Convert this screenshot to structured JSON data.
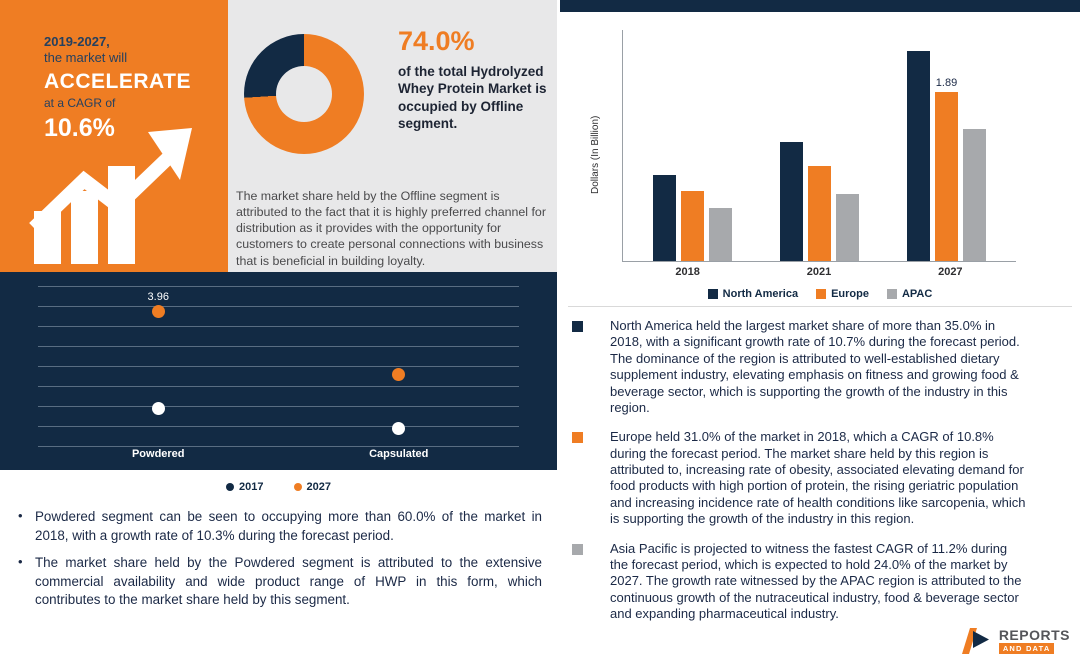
{
  "colors": {
    "orange": "#ef7d23",
    "navy": "#122a44",
    "gray": "#a7a9ac",
    "light_gray_bg": "#e8e8e9",
    "text_dark": "#1b2946"
  },
  "accelerate_panel": {
    "period": "2019-2027,",
    "intro": "the market will",
    "emphasis": "ACCELERATE",
    "cagr_label": "at a CAGR of",
    "cagr_value": "10.6%"
  },
  "offline_panel": {
    "share_value": "74.0%",
    "headline": "of the total Hydrolyzed Whey Protein Market is occupied by Offline segment.",
    "body": "The market share held by the Offline segment is attributed to the fact that it is highly preferred channel for distribution as it provides with the opportunity for customers to create personal connections with business that is beneficial in building loyalty."
  },
  "segment_panel": {
    "legend": [
      {
        "label": "2017",
        "color": "#122a44"
      },
      {
        "label": "2027",
        "color": "#ef7d23"
      }
    ],
    "bullets": [
      "Powdered segment can be seen to occupying more than 60.0% of the market in 2018, with a growth rate of 10.3% during the forecast period.",
      "The market share held by the Powdered segment is attributed to the extensive commercial availability and wide product range of HWP in this form, which contributes to the market share held by this segment."
    ]
  },
  "regional_panel": {
    "bullets": [
      {
        "color": "#122a44",
        "text": "North America held the largest market share of more than 35.0% in 2018, with a significant growth rate of 10.7% during the forecast period. The dominance of the region is attributed to well-established dietary supplement industry, elevating emphasis on fitness and growing food & beverage sector, which is supporting the growth of the industry in this region."
      },
      {
        "color": "#ef7d23",
        "text": "Europe held 31.0% of the market in 2018, which a CAGR of 10.8% during the forecast period. The market share held by this region is attributed to, increasing rate of obesity, associated elevating demand for food products with high portion of protein, the rising geriatric population and increasing incidence rate of health conditions like sarcopenia, which is supporting the growth of the industry in this region."
      },
      {
        "color": "#a7a9ac",
        "text": "Asia Pacific is projected to witness the fastest CAGR of 11.2% during the forecast period, which is expected to hold 24.0% of the market by 2027. The growth rate witnessed by the APAC region is attributed to the continuous growth of the nutraceutical industry, food & beverage sector and expanding pharmaceutical industry."
      }
    ]
  },
  "logo": {
    "name": "REPORTS",
    "tagline": "AND DATA"
  },
  "chart_data": [
    {
      "id": "offline-share-donut",
      "type": "pie",
      "title": "Offline segment share of total Hydrolyzed Whey Protein Market",
      "slices": [
        {
          "label": "Offline",
          "value": 74.0,
          "color": "#ef7d23"
        },
        {
          "label": "Other",
          "value": 26.0,
          "color": "#122a44"
        }
      ],
      "center_hole": true
    },
    {
      "id": "segment-dot-plot",
      "type": "scatter",
      "categories": [
        "Powdered",
        "Capsulated"
      ],
      "series": [
        {
          "name": "2017",
          "color": "#ffffff",
          "values": [
            1.1,
            0.5
          ]
        },
        {
          "name": "2027",
          "color": "#ef7d23",
          "values": [
            3.96,
            2.1
          ]
        }
      ],
      "data_labels": [
        {
          "series": "2027",
          "category": "Powdered",
          "text": "3.96"
        }
      ],
      "ylim": [
        0,
        4.7
      ],
      "grid": true,
      "legend_position": "bottom"
    },
    {
      "id": "regional-bar-chart",
      "type": "bar",
      "ylabel": "Dollars (In Billion)",
      "categories": [
        "2018",
        "2021",
        "2027"
      ],
      "series": [
        {
          "name": "North America",
          "color": "#122a44",
          "values": [
            0.96,
            1.33,
            2.35
          ]
        },
        {
          "name": "Europe",
          "color": "#ef7d23",
          "values": [
            0.79,
            1.07,
            1.89
          ]
        },
        {
          "name": "APAC",
          "color": "#a7a9ac",
          "values": [
            0.59,
            0.75,
            1.48
          ]
        }
      ],
      "data_labels": [
        {
          "series": "Europe",
          "category": "2027",
          "text": "1.89"
        }
      ],
      "ylim": [
        0,
        2.6
      ],
      "grid": false,
      "legend_position": "bottom"
    }
  ]
}
